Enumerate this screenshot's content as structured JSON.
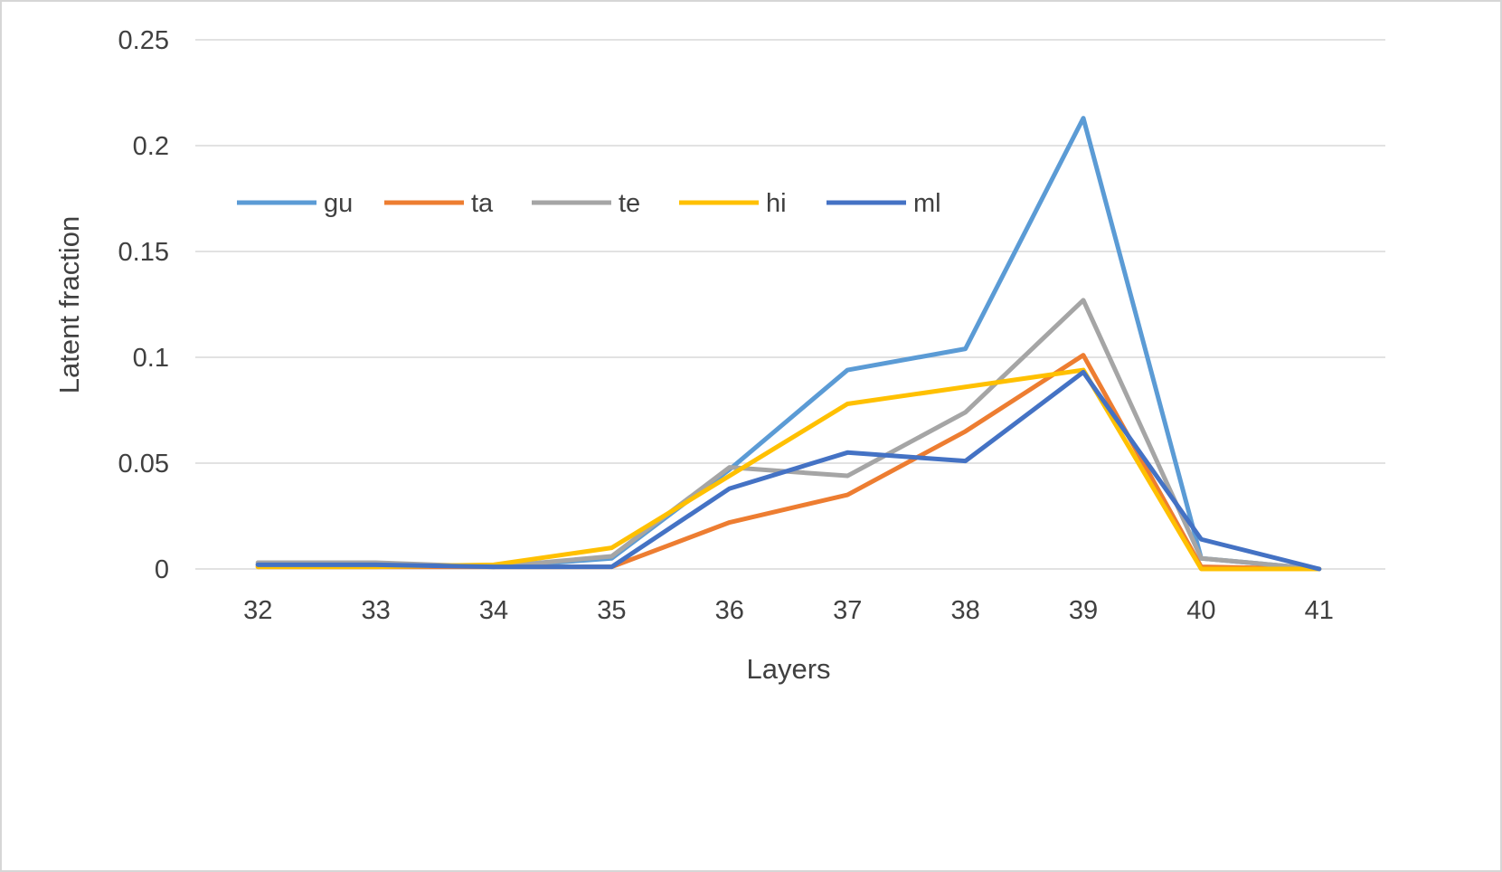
{
  "chart_data": {
    "type": "line",
    "title": "",
    "xlabel": "Layers",
    "ylabel": "Latent fraction",
    "x": [
      32,
      33,
      34,
      35,
      36,
      37,
      38,
      39,
      40,
      41
    ],
    "ylim": [
      0,
      0.25
    ],
    "yticks": [
      0,
      0.05,
      0.1,
      0.15,
      0.2,
      0.25
    ],
    "grid": true,
    "legend_position": "top-left-inside",
    "series": [
      {
        "name": "gu",
        "color": "#5B9BD5",
        "values": [
          0.002,
          0.002,
          0.001,
          0.005,
          0.047,
          0.094,
          0.104,
          0.213,
          0.005,
          0.0
        ]
      },
      {
        "name": "ta",
        "color": "#ED7D31",
        "values": [
          0.001,
          0.001,
          0.001,
          0.001,
          0.022,
          0.035,
          0.065,
          0.101,
          0.001,
          0.0
        ]
      },
      {
        "name": "te",
        "color": "#A5A5A5",
        "values": [
          0.003,
          0.003,
          0.001,
          0.006,
          0.048,
          0.044,
          0.074,
          0.127,
          0.005,
          0.0
        ]
      },
      {
        "name": "hi",
        "color": "#FFC000",
        "values": [
          0.001,
          0.001,
          0.002,
          0.01,
          0.044,
          0.078,
          0.086,
          0.094,
          0.0,
          0.0
        ]
      },
      {
        "name": "ml",
        "color": "#4472C4",
        "values": [
          0.002,
          0.002,
          0.001,
          0.001,
          0.038,
          0.055,
          0.051,
          0.093,
          0.014,
          0.0
        ]
      }
    ],
    "colors": {
      "gridline": "#D9D9D9",
      "text": "#404040",
      "border": "#D6D6D6"
    }
  }
}
